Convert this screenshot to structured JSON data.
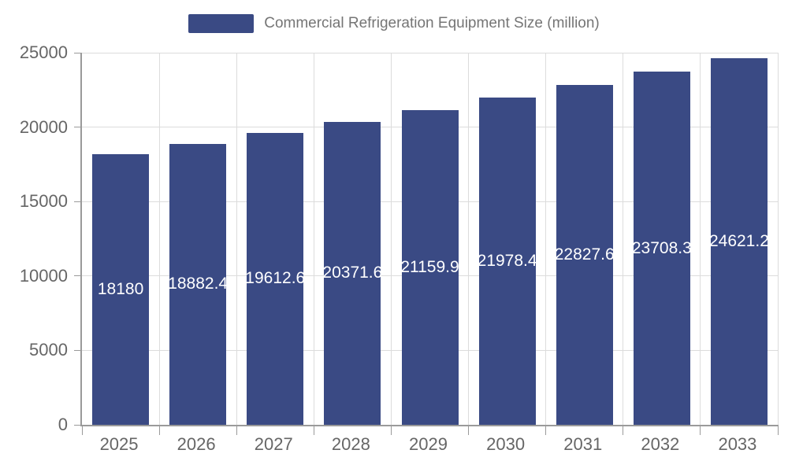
{
  "chart_data": {
    "type": "bar",
    "title": "Commercial Refrigeration Equipment Size (million)",
    "categories": [
      "2025",
      "2026",
      "2027",
      "2028",
      "2029",
      "2030",
      "2031",
      "2032",
      "2033"
    ],
    "values": [
      18180,
      18882.4,
      19612.6,
      20371.6,
      21159.9,
      21978.4,
      22827.6,
      23708.3,
      24621.2
    ],
    "bar_labels": [
      "18180",
      "18882.4",
      "19612.6",
      "20371.6",
      "21159.9",
      "21978.4",
      "22827.6",
      "23708.3",
      "24621.2"
    ],
    "xlabel": "",
    "ylabel": "",
    "ylim": [
      0,
      25000
    ],
    "yticks": [
      0,
      5000,
      10000,
      15000,
      20000,
      25000
    ],
    "ytick_labels": [
      "0",
      "5000",
      "10000",
      "15000",
      "20000",
      "25000"
    ],
    "grid": true,
    "legend_position": "top",
    "colors": {
      "bar": "#3A4A84",
      "bar_label": "#ffffff",
      "grid_line": "#dcdcdc",
      "axis_line": "#9a9a9a",
      "tick_label": "#666666",
      "legend_text": "#757575",
      "background": "#ffffff"
    }
  }
}
